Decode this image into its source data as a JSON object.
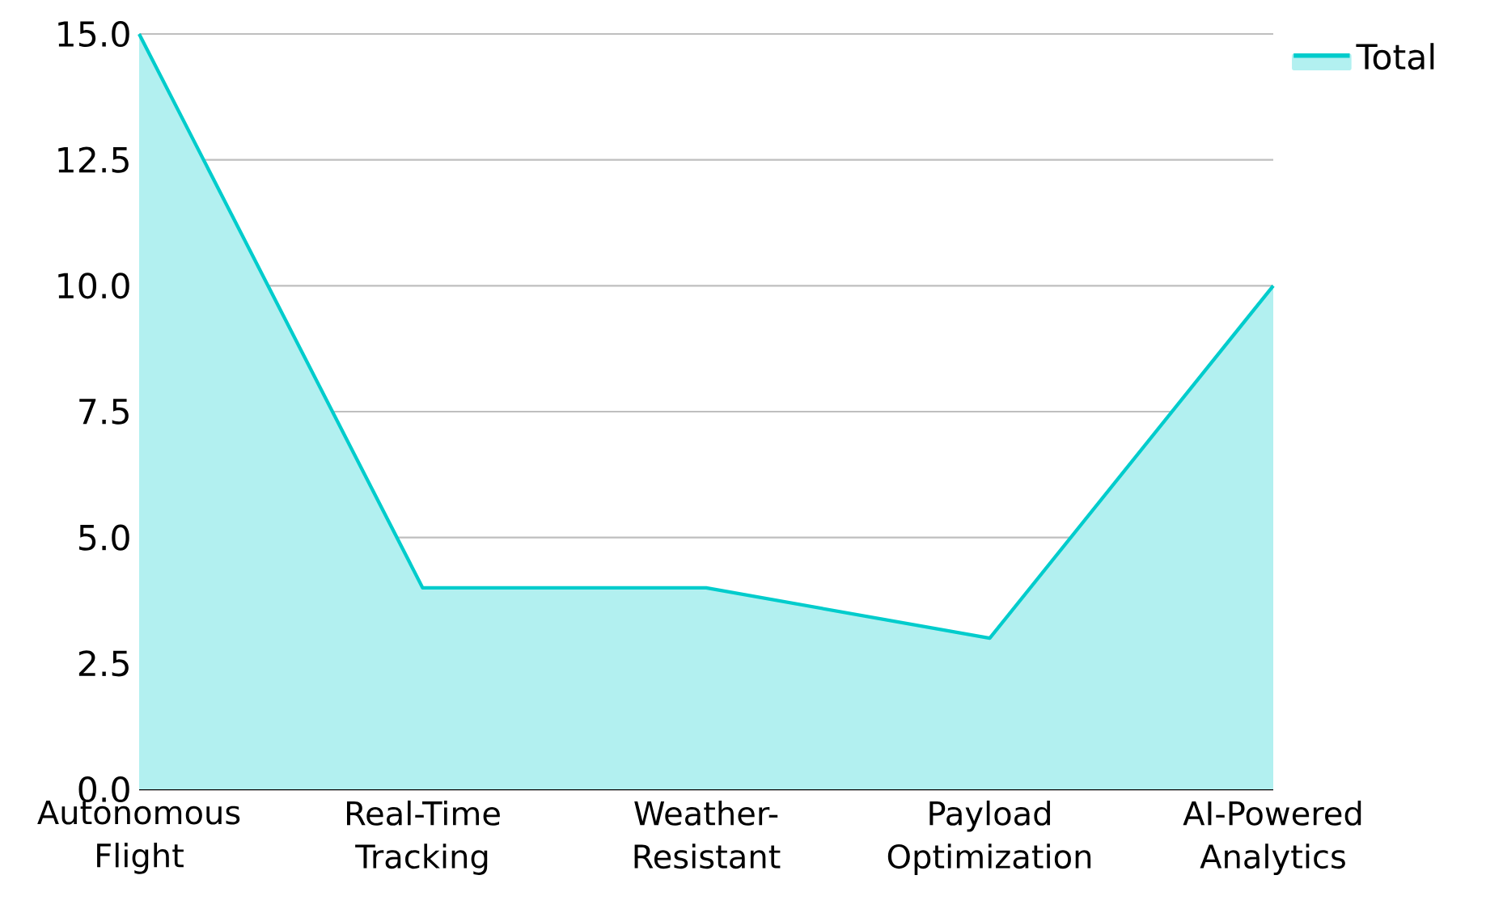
{
  "chart_data": {
    "type": "area",
    "categories": [
      "Autonomous Flight",
      "Real-Time Tracking",
      "Weather-Resistant",
      "Payload Optimization",
      "AI-Powered Analytics"
    ],
    "series": [
      {
        "name": "Total",
        "color": "#00cccc",
        "values": [
          15,
          4,
          4,
          3,
          10
        ]
      }
    ],
    "ylim": [
      0,
      15
    ],
    "yticks": [
      {
        "value": 0,
        "label": "0.0"
      },
      {
        "value": 2.5,
        "label": "2.5"
      },
      {
        "value": 5,
        "label": "5.0"
      },
      {
        "value": 7.5,
        "label": "7.5"
      },
      {
        "value": 10,
        "label": "10.0"
      },
      {
        "value": 12.5,
        "label": "12.5"
      },
      {
        "value": 15,
        "label": "15.0"
      }
    ],
    "grid": "y",
    "legend": "top right"
  }
}
